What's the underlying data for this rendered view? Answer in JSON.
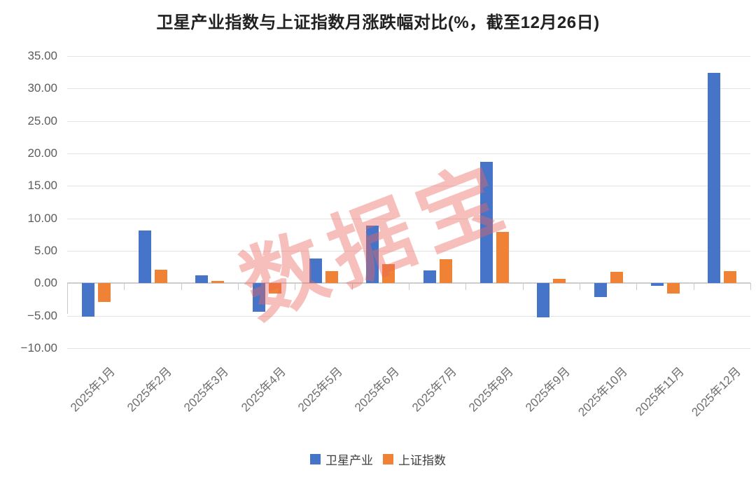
{
  "title": "卫星产业指数与上证指数月涨跌幅对比(%，截至12月26日)",
  "watermark": "数据宝",
  "colors": {
    "series_blue": "#4574C8",
    "series_orange": "#EF8234",
    "watermark_pink": "rgba(236,103,94,0.42)",
    "grid": "#e4e4e4",
    "baseline": "#cdcdcd"
  },
  "legend": {
    "items": [
      {
        "label": "卫星产业",
        "color": "#4574C8"
      },
      {
        "label": "上证指数",
        "color": "#EF8234"
      }
    ]
  },
  "chart_data": {
    "type": "bar",
    "title": "卫星产业指数与上证指数月涨跌幅对比(%，截至12月26日)",
    "unit": "%",
    "categories": [
      "2025年1月",
      "2025年2月",
      "2025年3月",
      "2025年4月",
      "2025年5月",
      "2025年6月",
      "2025年7月",
      "2025年8月",
      "2025年9月",
      "2025年10月",
      "2025年11月",
      "2025年12月"
    ],
    "series": [
      {
        "name": "卫星产业",
        "color": "#4574C8",
        "values": [
          -5.1,
          8.1,
          1.2,
          -4.4,
          3.8,
          8.9,
          2.0,
          18.7,
          -5.2,
          -2.1,
          -0.4,
          32.4
        ]
      },
      {
        "name": "上证指数",
        "color": "#EF8234",
        "values": [
          -2.9,
          2.1,
          0.4,
          -1.6,
          1.9,
          2.9,
          3.7,
          7.9,
          0.7,
          1.8,
          -1.6,
          1.9
        ]
      }
    ],
    "ylim": [
      -10,
      35
    ],
    "yticks": [
      35,
      30,
      25,
      20,
      15,
      10,
      5,
      0,
      -5,
      -10
    ],
    "ytick_labels": [
      "35.00",
      "30.00",
      "25.00",
      "20.00",
      "15.00",
      "10.00",
      "5.00",
      "0.00",
      "−5.00",
      "−10.00"
    ],
    "grid": true,
    "legend_position": "bottom"
  }
}
